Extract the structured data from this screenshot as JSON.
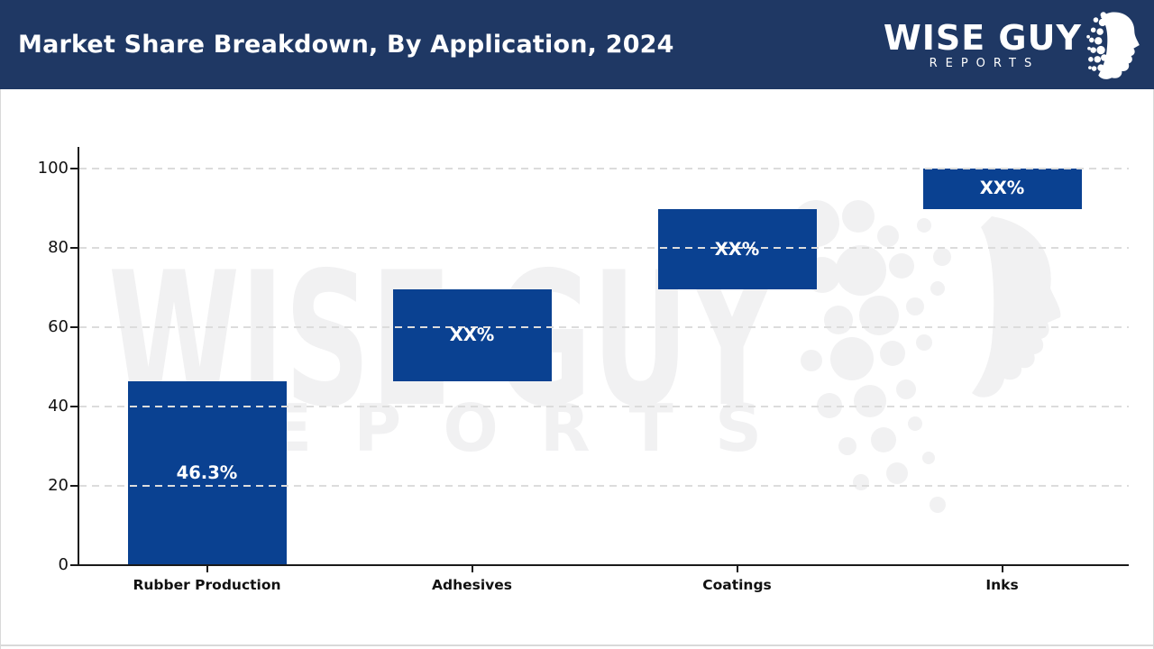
{
  "header": {
    "title": "Market Share Breakdown, By Application, 2024",
    "logo": {
      "line1": "WISE GUY",
      "line2": "REPORTS"
    }
  },
  "watermark": {
    "line1": "WISE GUY",
    "line2": "REPORTS"
  },
  "colors": {
    "header_bg": "#1f3864",
    "bar": "#0a4191",
    "grid": "#dcdcdc",
    "axis": "#1a1a1a",
    "value_label": "#ffffff",
    "watermark": "#f1f1f2"
  },
  "chart_data": {
    "type": "bar",
    "subtype": "waterfall",
    "title": "Market Share Breakdown, By Application, 2024",
    "categories": [
      "Rubber Production",
      "Adhesives",
      "Coatings",
      "Inks"
    ],
    "segments": [
      {
        "category": "Rubber Production",
        "start": 0,
        "end": 46.3,
        "label": "46.3%"
      },
      {
        "category": "Adhesives",
        "start": 46.3,
        "end": 69.5,
        "label": "XX%"
      },
      {
        "category": "Coatings",
        "start": 69.5,
        "end": 89.8,
        "label": "XX%"
      },
      {
        "category": "Inks",
        "start": 89.8,
        "end": 100,
        "label": "XX%"
      }
    ],
    "yticks": [
      0,
      20,
      40,
      60,
      80,
      100
    ],
    "ylim": [
      0,
      105.5
    ],
    "xlabel": "",
    "ylabel": "",
    "grid": "horizontal-dashed-above-bars",
    "legend": "none",
    "bar_color": "#0a4191",
    "value_label_color": "#ffffff"
  }
}
